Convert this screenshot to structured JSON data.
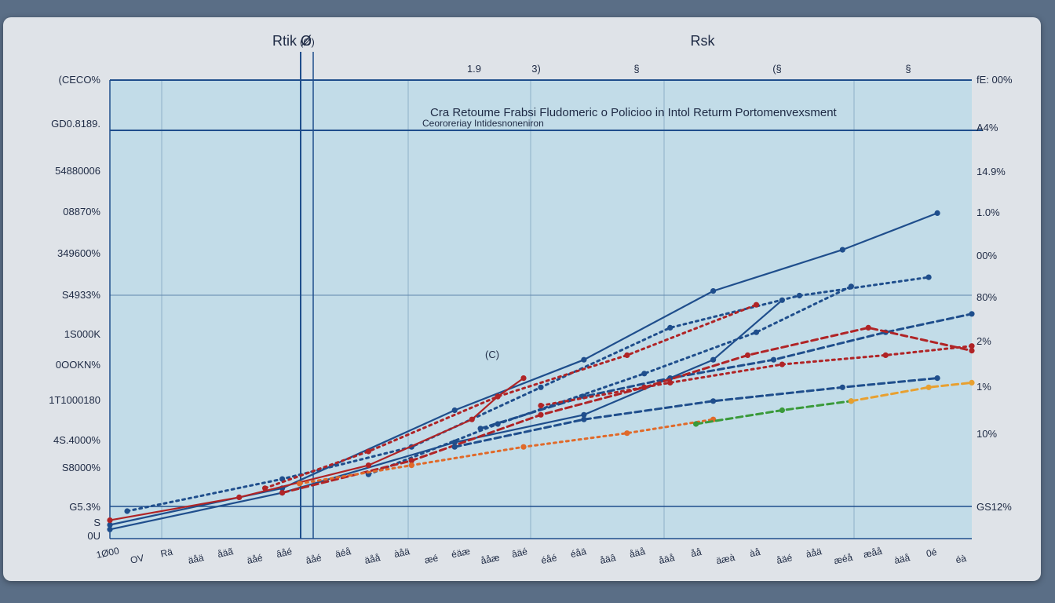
{
  "chart_data": {
    "type": "line",
    "title": "Cra Retoume Frabsi Fludomeric o Policioo in Intol Returm Portomenvexsment",
    "subtitle": "Ceororeriay Intidesnoneniron",
    "top_axis_labels": [
      "Rtik Ø",
      "Rsk"
    ],
    "annotations": [
      "(Ø)",
      "(C)"
    ],
    "left_ticks": [
      "(CECO%",
      "GD0.8189.",
      "54880006",
      "08870%",
      "349600%",
      "S4933%",
      "1S000K",
      "0OOKN%",
      "1T1000180",
      "4S.4000%",
      "S8000%",
      "G5.3%",
      "S",
      "0U"
    ],
    "right_ticks": [
      "fE: 00%",
      "A4%",
      "14.9%",
      "1.0%",
      "00%",
      "80%",
      "2%",
      "1%",
      "10%",
      "GS12%"
    ],
    "top_ticks": [
      "1.9",
      "3)",
      "§",
      "(§",
      "§"
    ],
    "bottom_ticks": [
      "1Ø00",
      "OV",
      "Rä",
      "äåä",
      "åäã",
      "äåé",
      "âåé",
      "âåé",
      "äéå",
      "äåå",
      "àåä",
      "æé",
      "éäæ",
      "ååæ",
      "âäé",
      "éåé",
      "éåä",
      "åäâ",
      "åäå",
      "åäå",
      "åå",
      "äæà",
      "àå",
      "åäé",
      "àåä",
      "æéå",
      "æåå",
      "àäå",
      "0é",
      "éà"
    ],
    "x_range": [
      0,
      100
    ],
    "y_range": [
      0,
      100
    ],
    "grid": true,
    "series": [
      {
        "color": "#1f4e8c",
        "style": "solid",
        "points": [
          [
            0,
            3
          ],
          [
            20,
            11
          ],
          [
            40,
            28
          ],
          [
            55,
            39
          ],
          [
            70,
            54
          ],
          [
            85,
            63
          ],
          [
            96,
            71
          ]
        ]
      },
      {
        "color": "#1f4e8c",
        "style": "solid",
        "points": [
          [
            0,
            2
          ],
          [
            20,
            10
          ],
          [
            40,
            21
          ],
          [
            55,
            27
          ],
          [
            70,
            39
          ],
          [
            78,
            52
          ]
        ]
      },
      {
        "color": "#1f4e8c",
        "style": "dotted",
        "points": [
          [
            2,
            6
          ],
          [
            20,
            13
          ],
          [
            35,
            20
          ],
          [
            50,
            33
          ],
          [
            65,
            46
          ],
          [
            80,
            53
          ],
          [
            95,
            57
          ]
        ]
      },
      {
        "color": "#1f4e8c",
        "style": "dotted",
        "points": [
          [
            30,
            14
          ],
          [
            45,
            25
          ],
          [
            62,
            36
          ],
          [
            75,
            45
          ],
          [
            86,
            55
          ]
        ]
      },
      {
        "color": "#1f4e8c",
        "style": "dashed",
        "points": [
          [
            43,
            24
          ],
          [
            55,
            31
          ],
          [
            65,
            35
          ],
          [
            77,
            39
          ],
          [
            90,
            45
          ],
          [
            100,
            49
          ]
        ]
      },
      {
        "color": "#b02426",
        "style": "solid",
        "points": [
          [
            0,
            4
          ],
          [
            15,
            9
          ],
          [
            30,
            16
          ],
          [
            42,
            26
          ],
          [
            45,
            31
          ],
          [
            48,
            35
          ]
        ]
      },
      {
        "color": "#b02426",
        "style": "dotted",
        "points": [
          [
            18,
            11
          ],
          [
            30,
            19
          ],
          [
            45,
            31
          ],
          [
            60,
            40
          ],
          [
            75,
            51
          ]
        ]
      },
      {
        "color": "#b02426",
        "style": "dashed",
        "points": [
          [
            20,
            10
          ],
          [
            35,
            17
          ],
          [
            50,
            27
          ],
          [
            62,
            33
          ],
          [
            74,
            40
          ],
          [
            88,
            46
          ],
          [
            100,
            41
          ]
        ]
      },
      {
        "color": "#b02426",
        "style": "dotted",
        "points": [
          [
            50,
            29
          ],
          [
            65,
            34
          ],
          [
            78,
            38
          ],
          [
            90,
            40
          ],
          [
            100,
            42
          ]
        ]
      },
      {
        "color": "#1f4e8c",
        "style": "dashed",
        "points": [
          [
            40,
            20
          ],
          [
            55,
            26
          ],
          [
            70,
            30
          ],
          [
            85,
            33
          ],
          [
            96,
            35
          ]
        ]
      },
      {
        "color": "#e06a2a",
        "style": "dotted",
        "points": [
          [
            22,
            12
          ],
          [
            35,
            16
          ],
          [
            48,
            20
          ],
          [
            60,
            23
          ],
          [
            70,
            26
          ]
        ]
      },
      {
        "color": "#3a9a3a",
        "style": "dashed",
        "points": [
          [
            68,
            25
          ],
          [
            78,
            28
          ],
          [
            86,
            30
          ]
        ]
      },
      {
        "color": "#e8a030",
        "style": "dashed",
        "points": [
          [
            86,
            30
          ],
          [
            95,
            33
          ],
          [
            100,
            34
          ]
        ]
      }
    ]
  }
}
